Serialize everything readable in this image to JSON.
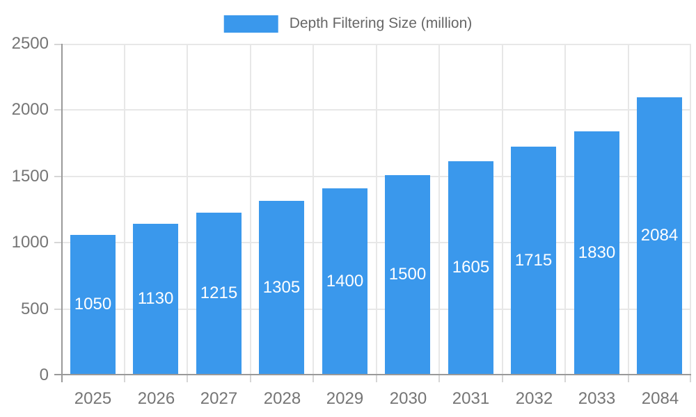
{
  "legend": {
    "position": "top",
    "items": [
      {
        "label": "Depth Filtering Size (million)",
        "color": "#3a98ec"
      }
    ]
  },
  "chart_data": {
    "type": "bar",
    "title": "",
    "categories": [
      "2025",
      "2026",
      "2027",
      "2028",
      "2029",
      "2030",
      "2031",
      "2032",
      "2033",
      "2084"
    ],
    "series": [
      {
        "name": "Depth Filtering Size (million)",
        "values": [
          1050,
          1130,
          1215,
          1305,
          1400,
          1500,
          1605,
          1715,
          1830,
          2084
        ]
      }
    ],
    "bar_value_labels_shown": true,
    "xlabel": "",
    "ylabel": "",
    "ylim": [
      0,
      2500
    ],
    "yticks": [
      0,
      500,
      1000,
      1500,
      2000,
      2500
    ],
    "grid": true,
    "legend_position": "top"
  },
  "colors": {
    "bar": "#3a98ec",
    "grid": "#e7e7e7",
    "tick": "#d6d6d6",
    "axis_line": "#999999",
    "axis_text": "#757575",
    "legend_text": "#666666",
    "bar_label_text": "#ffffff",
    "background": "#ffffff"
  }
}
